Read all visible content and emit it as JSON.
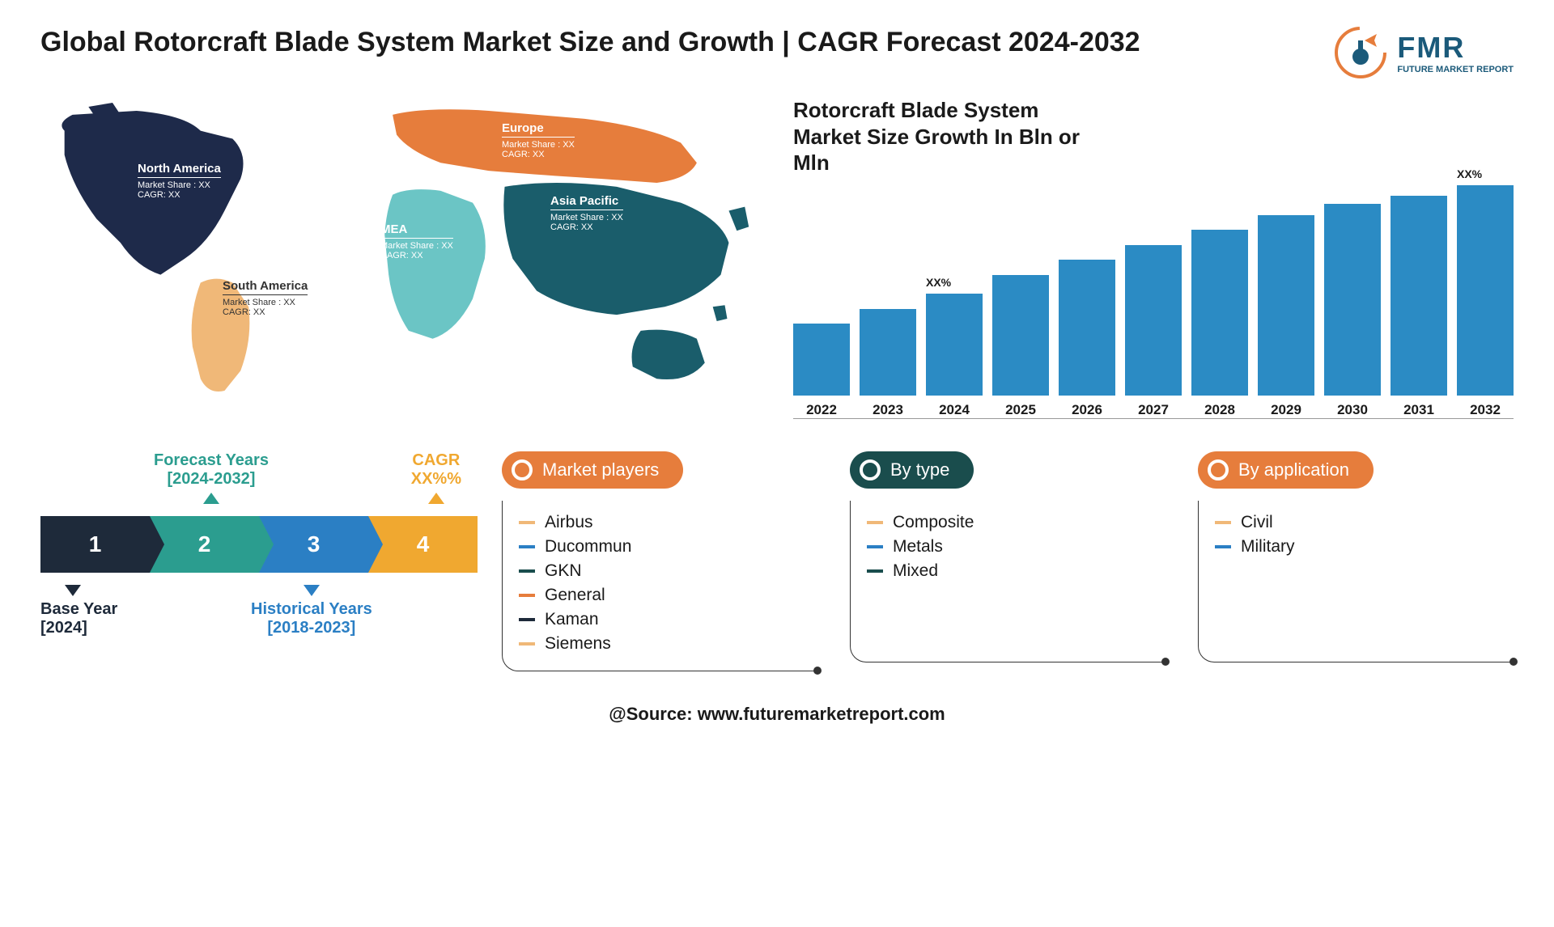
{
  "title": "Global Rotorcraft Blade System Market Size and Growth | CAGR Forecast 2024-2032",
  "logo": {
    "fmr": "FMR",
    "sub": "FUTURE MARKET REPORT"
  },
  "map": {
    "regions": [
      {
        "name": "North America",
        "share": "Market Share : XX",
        "cagr": "CAGR: XX",
        "color": "#1e2a4a"
      },
      {
        "name": "South America",
        "share": "Market Share : XX",
        "cagr": "CAGR: XX",
        "color": "#f0b878"
      },
      {
        "name": "Europe",
        "share": "Market Share : XX",
        "cagr": "CAGR: XX",
        "color": "#e67d3c"
      },
      {
        "name": "MEA",
        "share": "Market Share : XX",
        "cagr": "CAGR: XX",
        "color": "#6bc5c5"
      },
      {
        "name": "Asia Pacific",
        "share": "Market Share : XX",
        "cagr": "CAGR: XX",
        "color": "#1a5d6b"
      }
    ]
  },
  "chart": {
    "title": "Rotorcraft Blade System Market Size Growth In Bln or Mln",
    "years": [
      "2022",
      "2023",
      "2024",
      "2025",
      "2026",
      "2027",
      "2028",
      "2029",
      "2030",
      "2031",
      "2032"
    ],
    "values": [
      95,
      115,
      135,
      160,
      180,
      200,
      220,
      240,
      255,
      265,
      280
    ],
    "bar_color": "#2b8bc4",
    "annotations": [
      {
        "index": 2,
        "text": "XX%"
      },
      {
        "index": 10,
        "text": "XX%"
      }
    ]
  },
  "timeline": {
    "forecast": {
      "label": "Forecast Years",
      "range": "[2024-2032]",
      "color": "#2b9d8f"
    },
    "cagr": {
      "label": "CAGR",
      "value": "XX%%",
      "color": "#f0a830"
    },
    "base": {
      "label": "Base Year",
      "range": "[2024]",
      "color": "#1e2a3a"
    },
    "historical": {
      "label": "Historical Years",
      "range": "[2018-2023]",
      "color": "#2b7fc4"
    },
    "segments": [
      "1",
      "2",
      "3",
      "4"
    ]
  },
  "categories": [
    {
      "title": "Market players",
      "header_color": "#e67d3c",
      "items": [
        {
          "label": "Airbus",
          "color": "#f0b878"
        },
        {
          "label": "Ducommun",
          "color": "#2b7fc4"
        },
        {
          "label": "GKN",
          "color": "#1a4d4d"
        },
        {
          "label": "General",
          "color": "#e67d3c"
        },
        {
          "label": "Kaman",
          "color": "#1e2a3a"
        },
        {
          "label": "Siemens",
          "color": "#f0b878"
        }
      ]
    },
    {
      "title": "By type",
      "header_color": "#1a4d4d",
      "items": [
        {
          "label": "Composite",
          "color": "#f0b878"
        },
        {
          "label": "Metals",
          "color": "#2b7fc4"
        },
        {
          "label": "Mixed",
          "color": "#1a4d4d"
        }
      ]
    },
    {
      "title": "By application",
      "header_color": "#e67d3c",
      "items": [
        {
          "label": "Civil",
          "color": "#f0b878"
        },
        {
          "label": "Military",
          "color": "#2b7fc4"
        }
      ]
    }
  ],
  "source": "@Source: www.futuremarketreport.com"
}
